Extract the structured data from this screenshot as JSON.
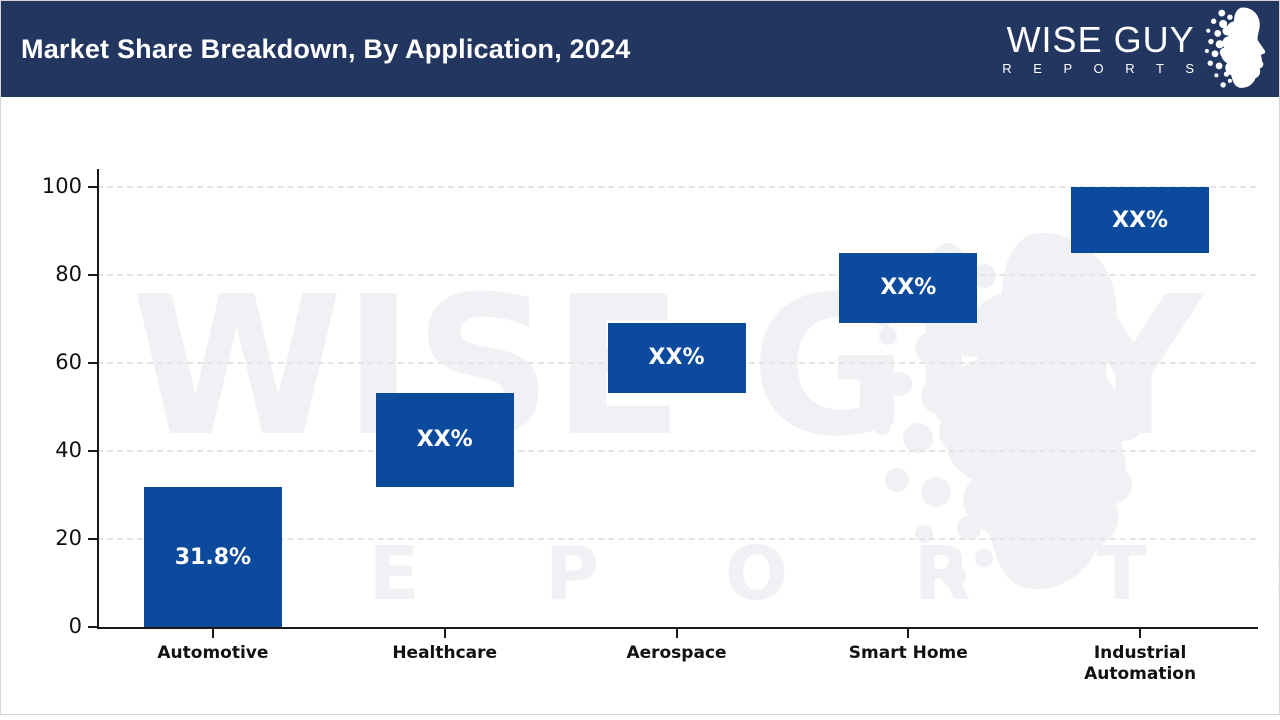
{
  "page": {
    "background": "#ffffff",
    "border_color": "#d6d6d6"
  },
  "header": {
    "title": "Market Share Breakdown, By Application, 2024",
    "bg_color": "#22365f",
    "text_color": "#ffffff",
    "logo": {
      "line1": "WISE GUY",
      "line2": "R E P O R T S",
      "head_icon": "face-profile-dots-icon",
      "color": "#ffffff"
    }
  },
  "watermark": {
    "line1": "WISE GUY",
    "line2": "R E P O R T S",
    "head_icon": "face-profile-dots-icon",
    "color": "#f0f1f4"
  },
  "chart_data": {
    "type": "bar",
    "variant": "floating-segment-waterfall",
    "title": "Market Share Breakdown, By Application, 2024",
    "xlabel": "",
    "ylabel": "",
    "categories": [
      "Automotive",
      "Healthcare",
      "Aerospace",
      "Smart Home",
      "Industrial Automation"
    ],
    "segments": [
      {
        "category": "Automotive",
        "start": 0,
        "end": 31.8,
        "label": "31.8%"
      },
      {
        "category": "Healthcare",
        "start": 31.8,
        "end": 53.2,
        "label": "XX%"
      },
      {
        "category": "Aerospace",
        "start": 53.2,
        "end": 69.1,
        "label": "XX%"
      },
      {
        "category": "Smart Home",
        "start": 69.1,
        "end": 85.0,
        "label": "XX%"
      },
      {
        "category": "Industrial Automation",
        "start": 85.0,
        "end": 100.0,
        "label": "XX%"
      }
    ],
    "ylim": [
      0,
      104
    ],
    "yticks": [
      0,
      20,
      40,
      60,
      80,
      100
    ],
    "grid": "horizontal-dashed",
    "gridline_color": "#e4e4e4",
    "bar_color": "#0b4a9c",
    "bar_label_color": "#ffffff",
    "axis_color": "#1a1a1a",
    "legend": "none"
  }
}
